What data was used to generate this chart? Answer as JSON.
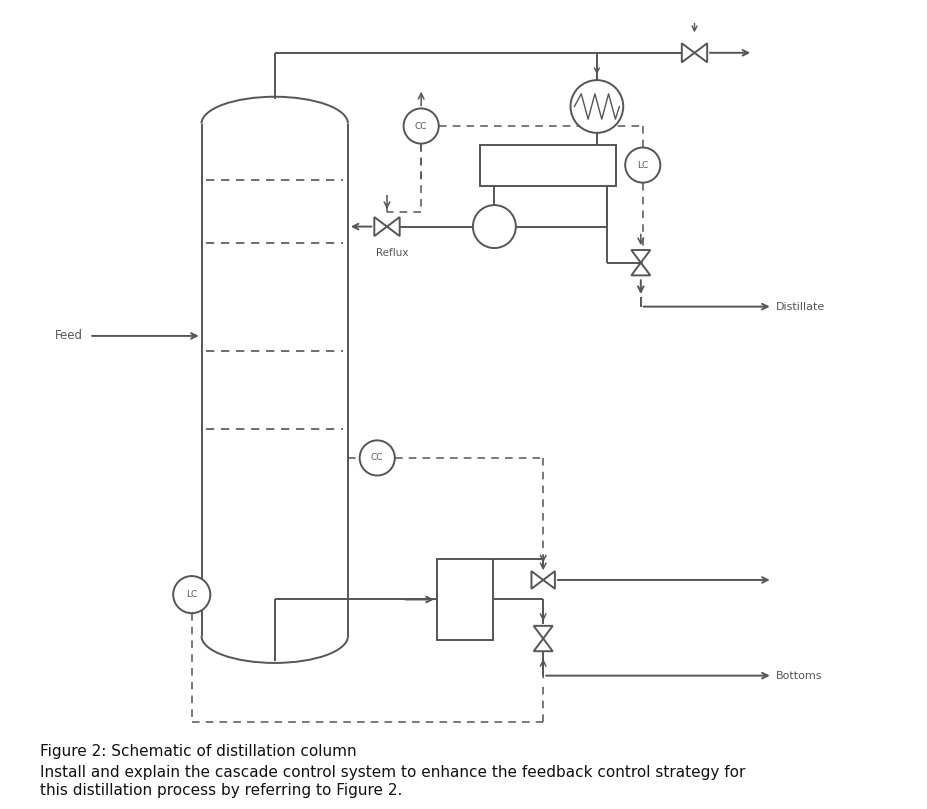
{
  "bg_color": "#ffffff",
  "line_color": "#555555",
  "dashed_color": "#555555",
  "title": "Figure 2: Schematic of distillation column",
  "caption": "Install and explain the cascade control system to enhance the feedback control strategy for\nthis distillation process by referring to Figure 2.",
  "title_fontsize": 11,
  "caption_fontsize": 11,
  "labels": {
    "reflux": "Reflux",
    "feed": "Feed",
    "distillate": "Distillate",
    "bottoms": "Bottoms",
    "cc": "CC",
    "lc": "LC"
  }
}
